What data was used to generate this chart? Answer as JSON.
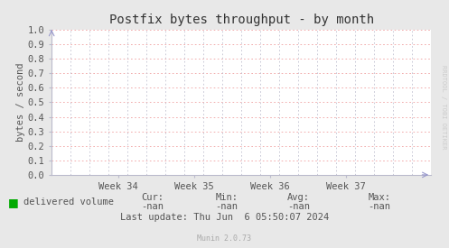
{
  "title": "Postfix bytes throughput - by month",
  "ylabel": "bytes / second",
  "background_color": "#e8e8e8",
  "plot_bg_color": "#ffffff",
  "grid_color_h": "#f0a0a0",
  "grid_color_v": "#c0c0d0",
  "ylim": [
    0.0,
    1.0
  ],
  "yticks": [
    0.0,
    0.1,
    0.2,
    0.3,
    0.4,
    0.5,
    0.6,
    0.7,
    0.8,
    0.9,
    1.0
  ],
  "xtick_labels": [
    "Week 34",
    "Week 35",
    "Week 36",
    "Week 37"
  ],
  "xtick_positions": [
    0.175,
    0.375,
    0.575,
    0.775
  ],
  "vgrid_positions": [
    0.05,
    0.1,
    0.15,
    0.2,
    0.25,
    0.3,
    0.35,
    0.4,
    0.45,
    0.5,
    0.55,
    0.6,
    0.65,
    0.7,
    0.75,
    0.8,
    0.85,
    0.9,
    0.95
  ],
  "legend_label": "delivered volume",
  "legend_color": "#00aa00",
  "cur_label": "Cur:",
  "cur_value": "-nan",
  "min_label": "Min:",
  "min_value": "-nan",
  "avg_label": "Avg:",
  "avg_value": "-nan",
  "max_label": "Max:",
  "max_value": "-nan",
  "last_update": "Last update: Thu Jun  6 05:50:07 2024",
  "munin_version": "Munin 2.0.73",
  "watermark": "RRDTOOL / TOBI OETIKER",
  "spine_color": "#bbbbcc",
  "title_fontsize": 10,
  "axis_label_fontsize": 7.5,
  "tick_fontsize": 7.5,
  "footer_fontsize": 7.5,
  "watermark_fontsize": 5
}
